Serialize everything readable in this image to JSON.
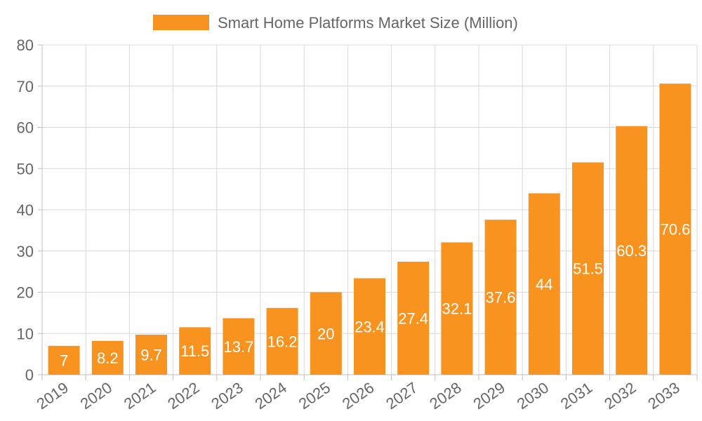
{
  "chart_data": {
    "type": "bar",
    "categories": [
      "2019",
      "2020",
      "2021",
      "2022",
      "2023",
      "2024",
      "2025",
      "2026",
      "2027",
      "2028",
      "2029",
      "2030",
      "2031",
      "2032",
      "2033"
    ],
    "series": [
      {
        "name": "Smart Home Platforms Market Size (Million)",
        "values": [
          7,
          8.2,
          9.7,
          11.5,
          13.7,
          16.2,
          20,
          23.4,
          27.4,
          32.1,
          37.6,
          44,
          51.5,
          60.3,
          70.6
        ]
      }
    ],
    "title": "",
    "xlabel": "",
    "ylabel": "",
    "ylim": [
      0,
      80
    ],
    "yticks": [
      0,
      10,
      20,
      30,
      40,
      50,
      60,
      70,
      80
    ],
    "grid": true,
    "legend_position": "top",
    "data_labels": true,
    "colors": {
      "bar": "#f7931e",
      "bar_label": "#ffffff"
    }
  }
}
